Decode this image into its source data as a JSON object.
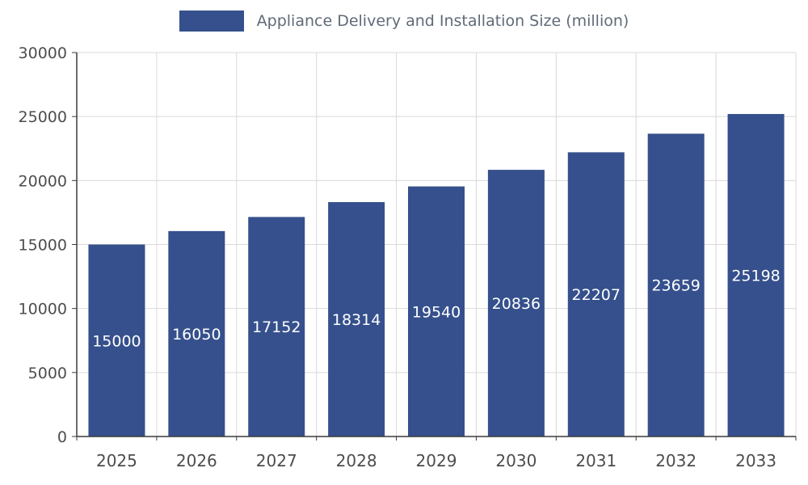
{
  "chart_data": {
    "type": "bar",
    "title": "Appliance Delivery and Installation Size (million)",
    "categories": [
      "2025",
      "2026",
      "2027",
      "2028",
      "2029",
      "2030",
      "2031",
      "2032",
      "2033"
    ],
    "values": [
      15000,
      16050,
      17152,
      18314,
      19540,
      20836,
      22207,
      23659,
      25198
    ],
    "xlabel": "",
    "ylabel": "",
    "ylim": [
      0,
      30000
    ],
    "yticks": [
      0,
      5000,
      10000,
      15000,
      20000,
      25000,
      30000
    ],
    "grid": true,
    "legend_position": "top-center",
    "colors": {
      "bar": "#35508c",
      "value_label": "#ffffff",
      "grid": "#d9d9d9",
      "axis": "#3c3c3c",
      "tick_label": "#4d4d4d",
      "title": "#5f6b78"
    }
  }
}
